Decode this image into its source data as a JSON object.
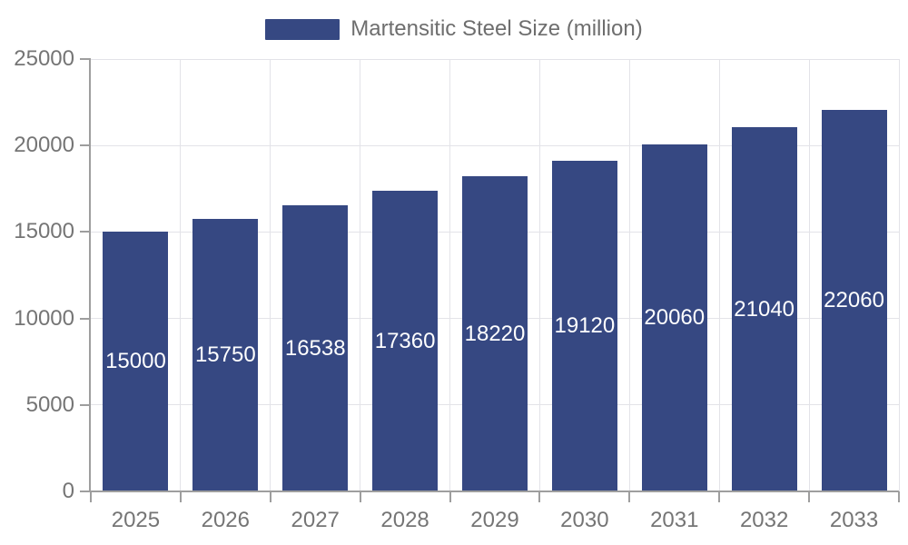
{
  "legend": {
    "label": "Martensitic Steel Size (million)"
  },
  "colors": {
    "bar": "#364882",
    "grid": "#e3e3e8",
    "axis": "#9e9e9e",
    "tick_label": "#757575",
    "legend_text": "#6e6e6e",
    "data_label": "#ffffff",
    "background": "#ffffff"
  },
  "chart_data": {
    "type": "bar",
    "title": "Martensitic Steel Size (million)",
    "categories": [
      "2025",
      "2026",
      "2027",
      "2028",
      "2029",
      "2030",
      "2031",
      "2032",
      "2033"
    ],
    "values": [
      15000,
      15750,
      16538,
      17360,
      18220,
      19120,
      20060,
      21040,
      22060
    ],
    "bar_value_labels": [
      "15000",
      "15750",
      "16538",
      "17360",
      "18220",
      "19120",
      "20060",
      "21040",
      "22060"
    ],
    "xlabel": "",
    "ylabel": "",
    "ylim": [
      0,
      25000
    ],
    "yticks": [
      0,
      5000,
      10000,
      15000,
      20000,
      25000
    ],
    "ytick_labels": [
      "0",
      "5000",
      "10000",
      "15000",
      "20000",
      "25000"
    ],
    "grid": true,
    "legend_position": "top",
    "data_label_position": "inside-middle"
  }
}
